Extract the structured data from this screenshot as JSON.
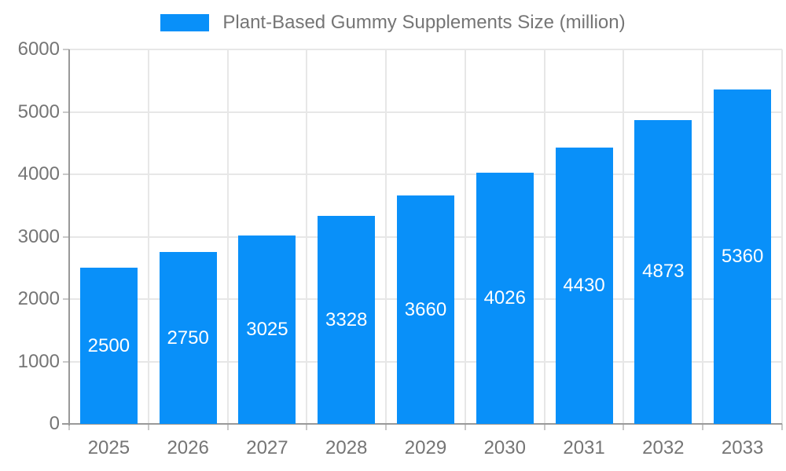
{
  "chart": {
    "legend_label": "Plant-Based Gummy Supplements Size (million)"
  },
  "chart_data": {
    "type": "bar",
    "title": "Plant-Based Gummy Supplements Size (million)",
    "categories": [
      "2025",
      "2026",
      "2027",
      "2028",
      "2029",
      "2030",
      "2031",
      "2032",
      "2033"
    ],
    "values": [
      2500,
      2750,
      3025,
      3328,
      3660,
      4026,
      4430,
      4873,
      5360
    ],
    "xlabel": "",
    "ylabel": "",
    "ylim": [
      0,
      6000
    ],
    "yticks": [
      0,
      1000,
      2000,
      3000,
      4000,
      5000,
      6000
    ],
    "grid": true,
    "legend_position": "top-center",
    "value_labels": "inside-center",
    "bar_color": "#0990f9",
    "value_label_color": "#ffffff",
    "axis_text_color": "#757575",
    "grid_color": "#e7e7e7",
    "axis_line_color": "#999999",
    "background": "#ffffff"
  }
}
